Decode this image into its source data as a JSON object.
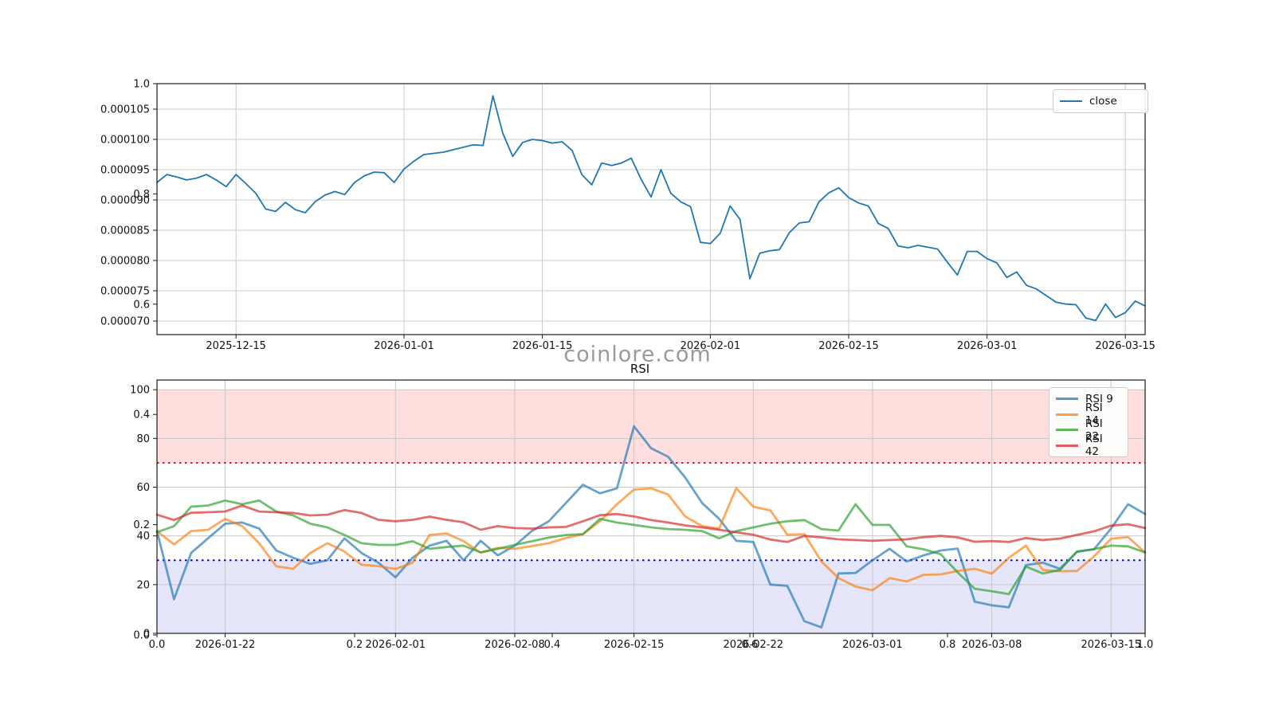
{
  "watermark": "coinlore.com",
  "colors": {
    "close_line": "#1f77b4",
    "rsi9": "#1f77b4",
    "rsi14": "#ff7f0e",
    "rsi22": "#2ca02c",
    "rsi42": "#d62728",
    "grid": "#c8c8c8",
    "spine": "#1a1a1a",
    "overbought_band": "rgba(255,0,0,0.13)",
    "oversold_band": "rgba(50,50,210,0.12)",
    "overbought_line": "#dc143c",
    "oversold_line": "#0000cc",
    "watermark_color": "#9a9a9a"
  },
  "price_legend": {
    "close_label": "close"
  },
  "rsi_legend": [
    {
      "label": "RSI 9"
    },
    {
      "label": "RSI 14"
    },
    {
      "label": "RSI 22"
    },
    {
      "label": "RSI 42"
    }
  ],
  "rsi_title": "RSI",
  "chart_data": [
    {
      "type": "line",
      "name": "price-close",
      "title": "",
      "ylabel": "",
      "grid": true,
      "legend_position": "upper right",
      "ylim": [
        6.75e-05,
        0.000109
      ],
      "yticks": [
        "0.000070",
        "0.000075",
        "0.000080",
        "0.000085",
        "0.000090",
        "0.000095",
        "0.000100",
        "0.000105"
      ],
      "xticks": [
        "2025-12-15",
        "2026-01-01",
        "2026-01-15",
        "2026-02-01",
        "2026-02-15",
        "2026-03-01",
        "2026-03-15"
      ],
      "x": [
        "2025-12-07",
        "2025-12-08",
        "2025-12-09",
        "2025-12-10",
        "2025-12-11",
        "2025-12-12",
        "2025-12-13",
        "2025-12-14",
        "2025-12-15",
        "2025-12-16",
        "2025-12-17",
        "2025-12-18",
        "2025-12-19",
        "2025-12-20",
        "2025-12-21",
        "2025-12-22",
        "2025-12-23",
        "2025-12-24",
        "2025-12-25",
        "2025-12-26",
        "2025-12-27",
        "2025-12-28",
        "2025-12-29",
        "2025-12-30",
        "2025-12-31",
        "2026-01-01",
        "2026-01-02",
        "2026-01-03",
        "2026-01-04",
        "2026-01-05",
        "2026-01-06",
        "2026-01-07",
        "2026-01-08",
        "2026-01-09",
        "2026-01-10",
        "2026-01-11",
        "2026-01-12",
        "2026-01-13",
        "2026-01-14",
        "2026-01-15",
        "2026-01-16",
        "2026-01-17",
        "2026-01-18",
        "2026-01-19",
        "2026-01-20",
        "2026-01-21",
        "2026-01-22",
        "2026-01-23",
        "2026-01-24",
        "2026-01-25",
        "2026-01-26",
        "2026-01-27",
        "2026-01-28",
        "2026-01-29",
        "2026-01-30",
        "2026-01-31",
        "2026-02-01",
        "2026-02-02",
        "2026-02-03",
        "2026-02-04",
        "2026-02-05",
        "2026-02-06",
        "2026-02-07",
        "2026-02-08",
        "2026-02-09",
        "2026-02-10",
        "2026-02-11",
        "2026-02-12",
        "2026-02-13",
        "2026-02-14",
        "2026-02-15",
        "2026-02-16",
        "2026-02-17",
        "2026-02-18",
        "2026-02-19",
        "2026-02-20",
        "2026-02-21",
        "2026-02-22",
        "2026-02-23",
        "2026-02-24",
        "2026-02-25",
        "2026-02-26",
        "2026-02-27",
        "2026-02-28",
        "2026-03-01",
        "2026-03-02",
        "2026-03-03",
        "2026-03-04",
        "2026-03-05",
        "2026-03-06",
        "2026-03-07",
        "2026-03-08",
        "2026-03-09",
        "2026-03-10",
        "2026-03-11",
        "2026-03-12",
        "2026-03-13",
        "2026-03-14",
        "2026-03-15",
        "2026-03-16",
        "2026-03-17"
      ],
      "series": [
        {
          "name": "close",
          "values": [
            9.29e-05,
            9.42e-05,
            9.38e-05,
            9.33e-05,
            9.36e-05,
            9.42e-05,
            9.33e-05,
            9.22e-05,
            9.42e-05,
            9.27e-05,
            9.11e-05,
            8.85e-05,
            8.81e-05,
            8.96e-05,
            8.84e-05,
            8.79e-05,
            8.97e-05,
            9.08e-05,
            9.14e-05,
            9.09e-05,
            9.29e-05,
            9.4e-05,
            9.46e-05,
            9.45e-05,
            9.29e-05,
            9.51e-05,
            9.64e-05,
            9.75e-05,
            9.77e-05,
            9.79e-05,
            9.83e-05,
            9.87e-05,
            9.91e-05,
            9.9e-05,
            0.0001072,
            0.000101,
            9.72e-05,
            9.95e-05,
            0.0001,
            9.98e-05,
            9.94e-05,
            9.96e-05,
            9.82e-05,
            9.42e-05,
            9.25e-05,
            9.61e-05,
            9.57e-05,
            9.61e-05,
            9.69e-05,
            9.34e-05,
            9.05e-05,
            9.5e-05,
            9.11e-05,
            8.97e-05,
            8.89e-05,
            8.3e-05,
            8.28e-05,
            8.45e-05,
            8.9e-05,
            8.68e-05,
            7.7e-05,
            8.12e-05,
            8.16e-05,
            8.18e-05,
            8.46e-05,
            8.62e-05,
            8.64e-05,
            8.97e-05,
            9.12e-05,
            9.2e-05,
            9.04e-05,
            8.95e-05,
            8.9e-05,
            8.61e-05,
            8.53e-05,
            8.24e-05,
            8.21e-05,
            8.25e-05,
            8.22e-05,
            8.19e-05,
            7.97e-05,
            7.76e-05,
            8.15e-05,
            8.15e-05,
            8.03e-05,
            7.96e-05,
            7.72e-05,
            7.81e-05,
            7.59e-05,
            7.53e-05,
            7.42e-05,
            7.31e-05,
            7.28e-05,
            7.27e-05,
            7.05e-05,
            7.01e-05,
            7.28e-05,
            7.06e-05,
            7.14e-05,
            7.33e-05,
            7.25e-05
          ]
        }
      ]
    },
    {
      "type": "line",
      "name": "rsi",
      "title": "RSI",
      "grid": true,
      "legend_position": "upper right",
      "ylim": [
        0,
        104
      ],
      "yticks": [
        "0",
        "20",
        "40",
        "60",
        "80",
        "100"
      ],
      "xticks": [
        "2026-01-22",
        "2026-02-01",
        "2026-02-08",
        "2026-02-15",
        "2026-02-22",
        "2026-03-01",
        "2026-03-08",
        "2026-03-15"
      ],
      "overbought_threshold": 70,
      "oversold_threshold": 30,
      "overbought_band": [
        70,
        100
      ],
      "oversold_band": [
        0,
        30
      ],
      "x": [
        "2026-01-18",
        "2026-01-19",
        "2026-01-20",
        "2026-01-21",
        "2026-01-22",
        "2026-01-23",
        "2026-01-24",
        "2026-01-25",
        "2026-01-26",
        "2026-01-27",
        "2026-01-28",
        "2026-01-29",
        "2026-01-30",
        "2026-01-31",
        "2026-02-01",
        "2026-02-02",
        "2026-02-03",
        "2026-02-04",
        "2026-02-05",
        "2026-02-06",
        "2026-02-07",
        "2026-02-08",
        "2026-02-09",
        "2026-02-10",
        "2026-02-11",
        "2026-02-12",
        "2026-02-13",
        "2026-02-14",
        "2026-02-15",
        "2026-02-16",
        "2026-02-17",
        "2026-02-18",
        "2026-02-19",
        "2026-02-20",
        "2026-02-21",
        "2026-02-22",
        "2026-02-23",
        "2026-02-24",
        "2026-02-25",
        "2026-02-26",
        "2026-02-27",
        "2026-02-28",
        "2026-03-01",
        "2026-03-02",
        "2026-03-03",
        "2026-03-04",
        "2026-03-05",
        "2026-03-06",
        "2026-03-07",
        "2026-03-08",
        "2026-03-09",
        "2026-03-10",
        "2026-03-11",
        "2026-03-12",
        "2026-03-13",
        "2026-03-14",
        "2026-03-15",
        "2026-03-16",
        "2026-03-17"
      ],
      "series": [
        {
          "name": "RSI 9",
          "values": [
            42,
            14,
            33,
            39,
            45,
            45.5,
            43,
            34,
            31,
            28.5,
            30,
            39,
            33,
            29,
            23,
            31,
            36,
            38,
            30,
            38,
            32,
            36,
            42,
            46,
            53.5,
            61,
            57.5,
            59.5,
            85,
            76,
            72.5,
            64,
            53.5,
            47,
            38,
            37.5,
            20,
            19.5,
            5,
            2.5,
            24.6,
            24.8,
            30,
            34.7,
            29.5,
            32,
            34,
            34.8,
            13,
            11.5,
            10.7,
            28,
            29,
            26.5,
            33.5,
            34.5,
            43,
            53,
            49
          ]
        },
        {
          "name": "RSI 14",
          "values": [
            42,
            36.5,
            42,
            42.5,
            47,
            44,
            37,
            27.5,
            26.5,
            33,
            37,
            33.6,
            28.2,
            27.6,
            26.4,
            29,
            40.4,
            41,
            37.8,
            33.2,
            35.1,
            34.7,
            35.8,
            37,
            39.1,
            40.7,
            46,
            53,
            59,
            59.5,
            57,
            48,
            44,
            43,
            59.6,
            52,
            50.5,
            40.5,
            40.7,
            29.5,
            22.7,
            19.2,
            17.7,
            22.7,
            21.3,
            24,
            24.2,
            25.6,
            26.5,
            24.5,
            31,
            36,
            26,
            25.5,
            25.6,
            31.6,
            38.8,
            39.5,
            33.2
          ]
        },
        {
          "name": "RSI 22",
          "values": [
            41.5,
            44,
            52,
            52.5,
            54.5,
            53,
            54.5,
            50,
            48.4,
            45,
            43.5,
            40.4,
            37,
            36.3,
            36.3,
            37.8,
            34.7,
            35.4,
            36,
            33.2,
            34.7,
            36.3,
            37.8,
            39.3,
            40.4,
            40.7,
            47,
            45.5,
            44.5,
            43.5,
            42.8,
            42.5,
            42,
            39,
            42,
            43.5,
            45,
            46,
            46.5,
            42.8,
            42.2,
            53,
            44.5,
            44.5,
            35.7,
            34.5,
            32.5,
            25,
            18.3,
            17.3,
            16.1,
            27.4,
            24.6,
            26,
            33.6,
            34.6,
            36,
            35.7,
            33.2
          ]
        },
        {
          "name": "RSI 42",
          "values": [
            48.7,
            46.5,
            49.5,
            49.7,
            50,
            52.5,
            50,
            49.7,
            49.4,
            48.4,
            48.7,
            50.6,
            49.4,
            46.6,
            46,
            46.6,
            47.9,
            46.6,
            45.6,
            42.5,
            44,
            43.2,
            43,
            43.5,
            43.7,
            46,
            48.5,
            49,
            48,
            46.5,
            45.5,
            44.3,
            43.5,
            42.5,
            41.5,
            40.5,
            38.5,
            37.5,
            40,
            39.4,
            38.6,
            38.3,
            38,
            38.3,
            38.6,
            39.5,
            40,
            39.4,
            37.6,
            37.9,
            37.5,
            39.1,
            38.3,
            38.9,
            40.4,
            41.9,
            44.2,
            44.8,
            43.2
          ]
        }
      ]
    }
  ],
  "overlay_axis": {
    "comment_visible_ticks_only": true,
    "yticks": [
      "0.0",
      "0.2",
      "0.4",
      "0.6",
      "0.8",
      "1.0"
    ],
    "xticks": [
      "0.0",
      "0.2",
      "0.4",
      "0.6",
      "0.8",
      "1.0"
    ]
  }
}
